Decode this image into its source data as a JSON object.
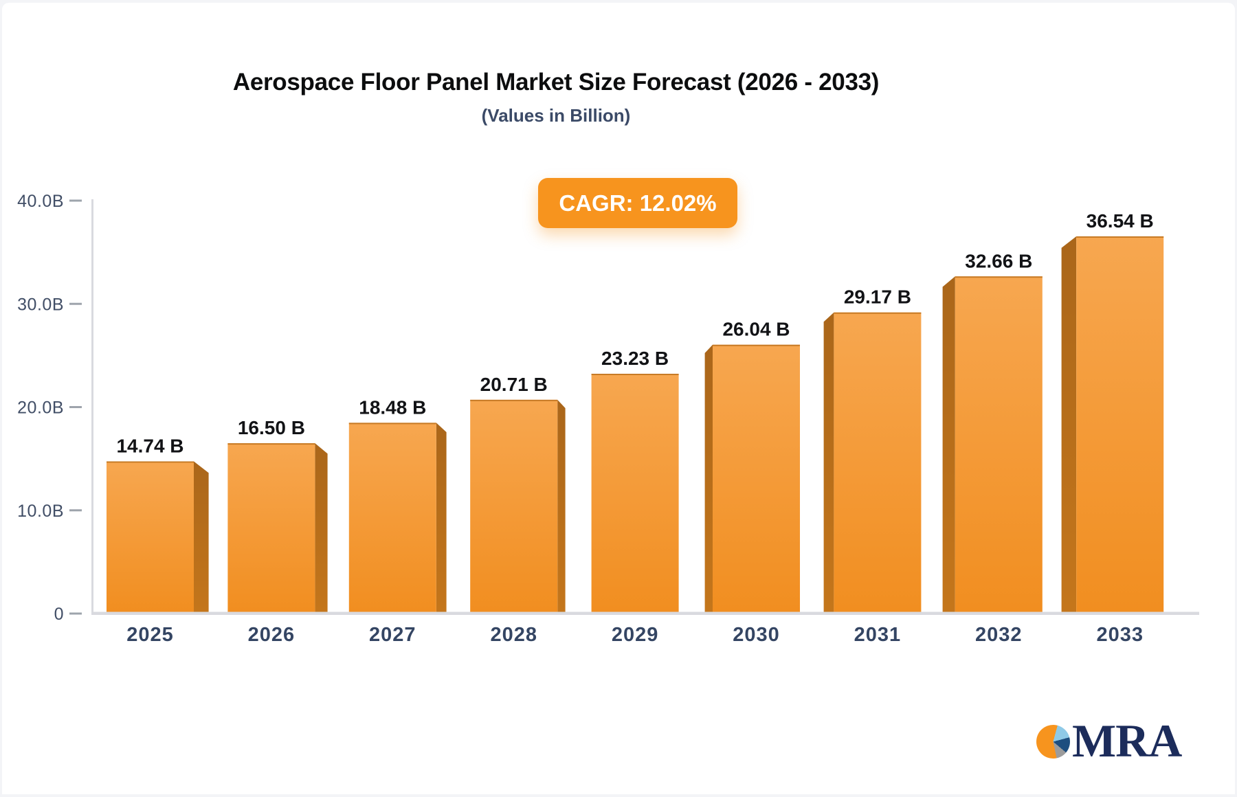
{
  "header": {
    "title": "Aerospace Floor Panel Market Size Forecast (2026 - 2033)",
    "subtitle": "(Values in Billion)"
  },
  "cagr_badge": {
    "label": "CAGR: 12.02%",
    "background": "#F7941E",
    "text_color": "#FFFFFF"
  },
  "chart_data": {
    "type": "bar",
    "title": "Aerospace Floor Panel Market Size Forecast (2026 - 2033)",
    "subtitle": "(Values in Billion)",
    "cagr": "12.02%",
    "categories": [
      "2025",
      "2026",
      "2027",
      "2028",
      "2029",
      "2030",
      "2031",
      "2032",
      "2033"
    ],
    "values": [
      14.74,
      16.5,
      18.48,
      20.71,
      23.23,
      26.04,
      29.17,
      32.66,
      36.54
    ],
    "value_labels": [
      "14.74 B",
      "16.50 B",
      "18.48 B",
      "20.71 B",
      "23.23 B",
      "26.04 B",
      "29.17 B",
      "32.66 B",
      "36.54 B"
    ],
    "unit": "Billion",
    "ylim": [
      0,
      40
    ],
    "y_tick_step": 10,
    "y_tick_labels": [
      "0",
      "10.0B",
      "20.0B",
      "30.0B",
      "40.0B"
    ],
    "grid": "off",
    "legend": "none",
    "style": "3d-extruded-bars",
    "colors": {
      "bar_front_top": "#F7A750",
      "bar_front_bottom": "#F18E20",
      "bar_top_edge": "#C77B26",
      "bar_side_top": "#AA661A",
      "bar_side_bottom": "#C4761B",
      "axis_line": "#D9DADF",
      "tick_dash": "#9EA4AC",
      "y_label": "#414E66",
      "x_label": "#344563",
      "value_label": "#121316"
    }
  },
  "logo": {
    "text": "MRA",
    "text_color": "#1C2C5B",
    "pie_orange": "#F7941E",
    "pie_lightblue": "#8FCAE7",
    "pie_navy": "#1D4E7F",
    "pie_gray": "#9C9C9C"
  }
}
